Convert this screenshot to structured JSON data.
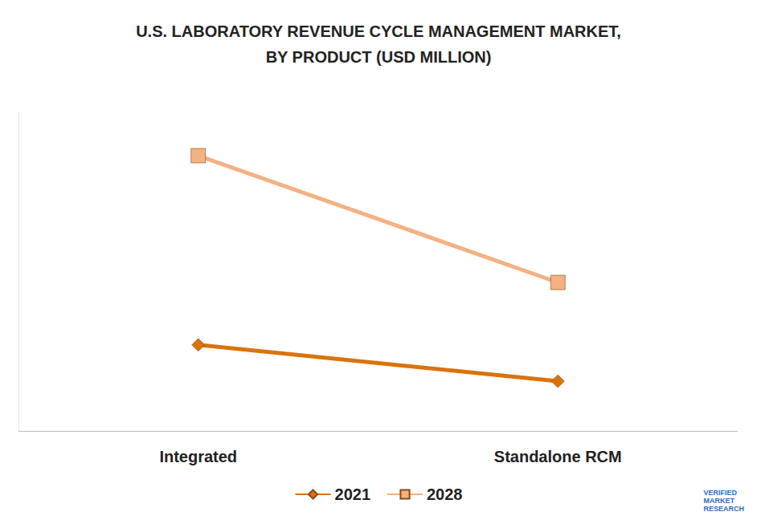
{
  "chart_data": {
    "type": "line",
    "title": "U.S. LABORATORY REVENUE CYCLE MANAGEMENT MARKET,\nBY PRODUCT (USD MILLION)",
    "categories": [
      "Integrated",
      "Standalone RCM"
    ],
    "series": [
      {
        "name": "2021",
        "color": "#d9730d",
        "marker": "diamond",
        "values": [
          27,
          15.6
        ]
      },
      {
        "name": "2028",
        "color": "#f4b183",
        "marker": "square",
        "values": [
          86.4,
          46.6
        ]
      }
    ],
    "ylim": [
      0,
      100
    ],
    "grid": false,
    "tick_labels": "x",
    "legend": "bottom",
    "annotations": [
      "VERIFIED MARKET RESEARCH"
    ]
  }
}
